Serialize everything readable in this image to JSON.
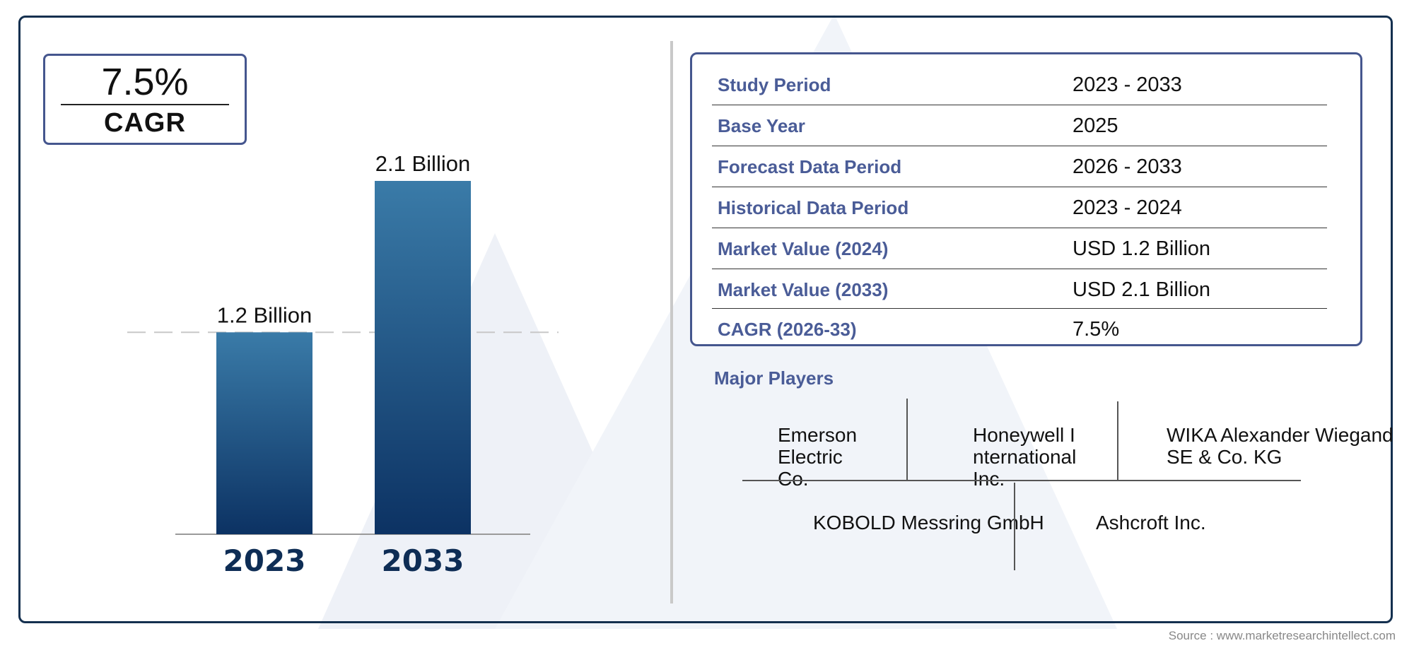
{
  "cagr_box": {
    "value": "7.5%",
    "label": "CAGR"
  },
  "chart_data": {
    "type": "bar",
    "categories": [
      "2023",
      "2033"
    ],
    "values": [
      1.2,
      2.1
    ],
    "value_labels": [
      "1.2 Billion",
      "2.1 Billion"
    ],
    "unit": "Billion",
    "title": "",
    "xlabel": "",
    "ylabel": "",
    "ylim": [
      0,
      2.1
    ],
    "grid": false,
    "reference_line": "dashed line at 2023 value",
    "colors": {
      "bar_top": "#3a7ba8",
      "bar_bottom": "#0c3263",
      "tick": "#0e2d55"
    }
  },
  "info_table": {
    "rows": [
      {
        "label": "Study Period",
        "value": "2023 - 2033"
      },
      {
        "label": "Base Year",
        "value": "2025"
      },
      {
        "label": "Forecast Data Period",
        "value": "2026 - 2033"
      },
      {
        "label": "Historical Data Period",
        "value": "2023 - 2024"
      },
      {
        "label": "Market Value (2024)",
        "value": "USD 1.2 Billion"
      },
      {
        "label": "Market Value (2033)",
        "value": "USD 2.1 Billion"
      },
      {
        "label": "CAGR (2026-33)",
        "value": "7.5%"
      }
    ]
  },
  "major_players": {
    "title": "Major Players",
    "players": [
      "Emerson Electric Co.",
      "Honeywell International Inc.",
      "WIKA Alexander Wiegand SE & Co. KG",
      "KOBOLD Messring GmbH",
      "Ashcroft Inc."
    ]
  },
  "source": "Source : www.marketresearchintellect.com",
  "colors": {
    "frame": "#14304f",
    "accent": "#4a5c97",
    "watermark": "#eef1f7"
  }
}
